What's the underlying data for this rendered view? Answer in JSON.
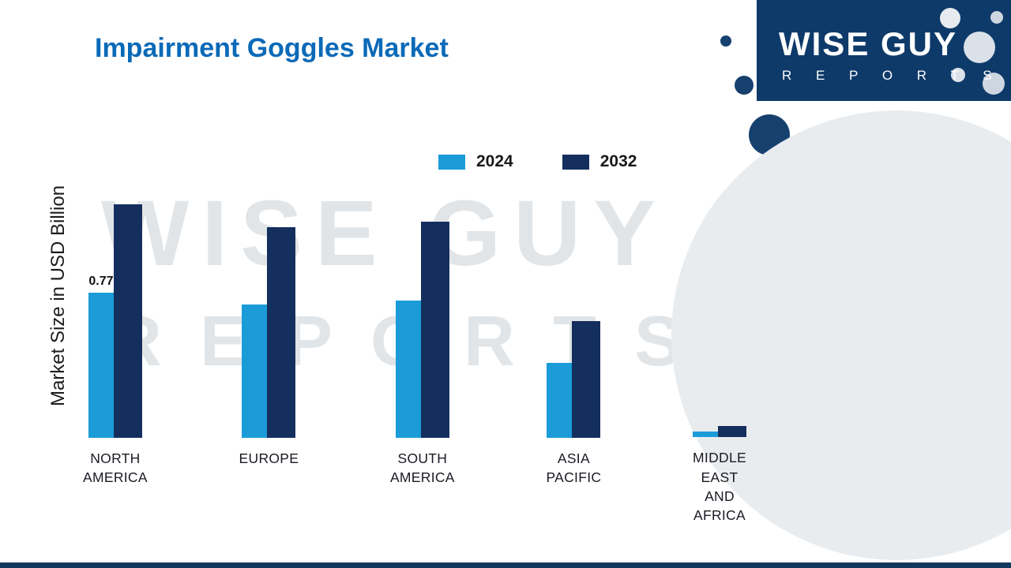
{
  "page": {
    "title": "Impairment Goggles Market"
  },
  "logo": {
    "line1": "WISE GUY",
    "line2": "R E P O R T S"
  },
  "watermark": {
    "line1": "WISE GUY",
    "line2": "REPORTS"
  },
  "colors": {
    "title_blue": "#0a6ab8",
    "series_2024": "#1b9cd9",
    "series_2032": "#142f5d",
    "logo_navy": "#0e3a6a",
    "bottom_strip": "#12375f",
    "background_circle": "#e9ecef"
  },
  "chart_data": {
    "type": "bar",
    "title": "Impairment Goggles Market",
    "xlabel": "",
    "ylabel": "Market Size in USD Billion",
    "categories": [
      "NORTH\nAMERICA",
      "EUROPE",
      "SOUTH\nAMERICA",
      "ASIA\nPACIFIC",
      "MIDDLE\nEAST\nAND\nAFRICA"
    ],
    "series": [
      {
        "name": "2024",
        "color": "#1b9cd9",
        "values": [
          0.77,
          0.71,
          0.73,
          0.4,
          0.03
        ]
      },
      {
        "name": "2032",
        "color": "#142f5d",
        "values": [
          1.24,
          1.12,
          1.15,
          0.62,
          0.06
        ]
      }
    ],
    "ylim": [
      0,
      1.3
    ],
    "grid": false,
    "legend_position": "top",
    "annotations": [
      {
        "category_index": 0,
        "series_index": 0,
        "text": "0.77"
      }
    ]
  }
}
